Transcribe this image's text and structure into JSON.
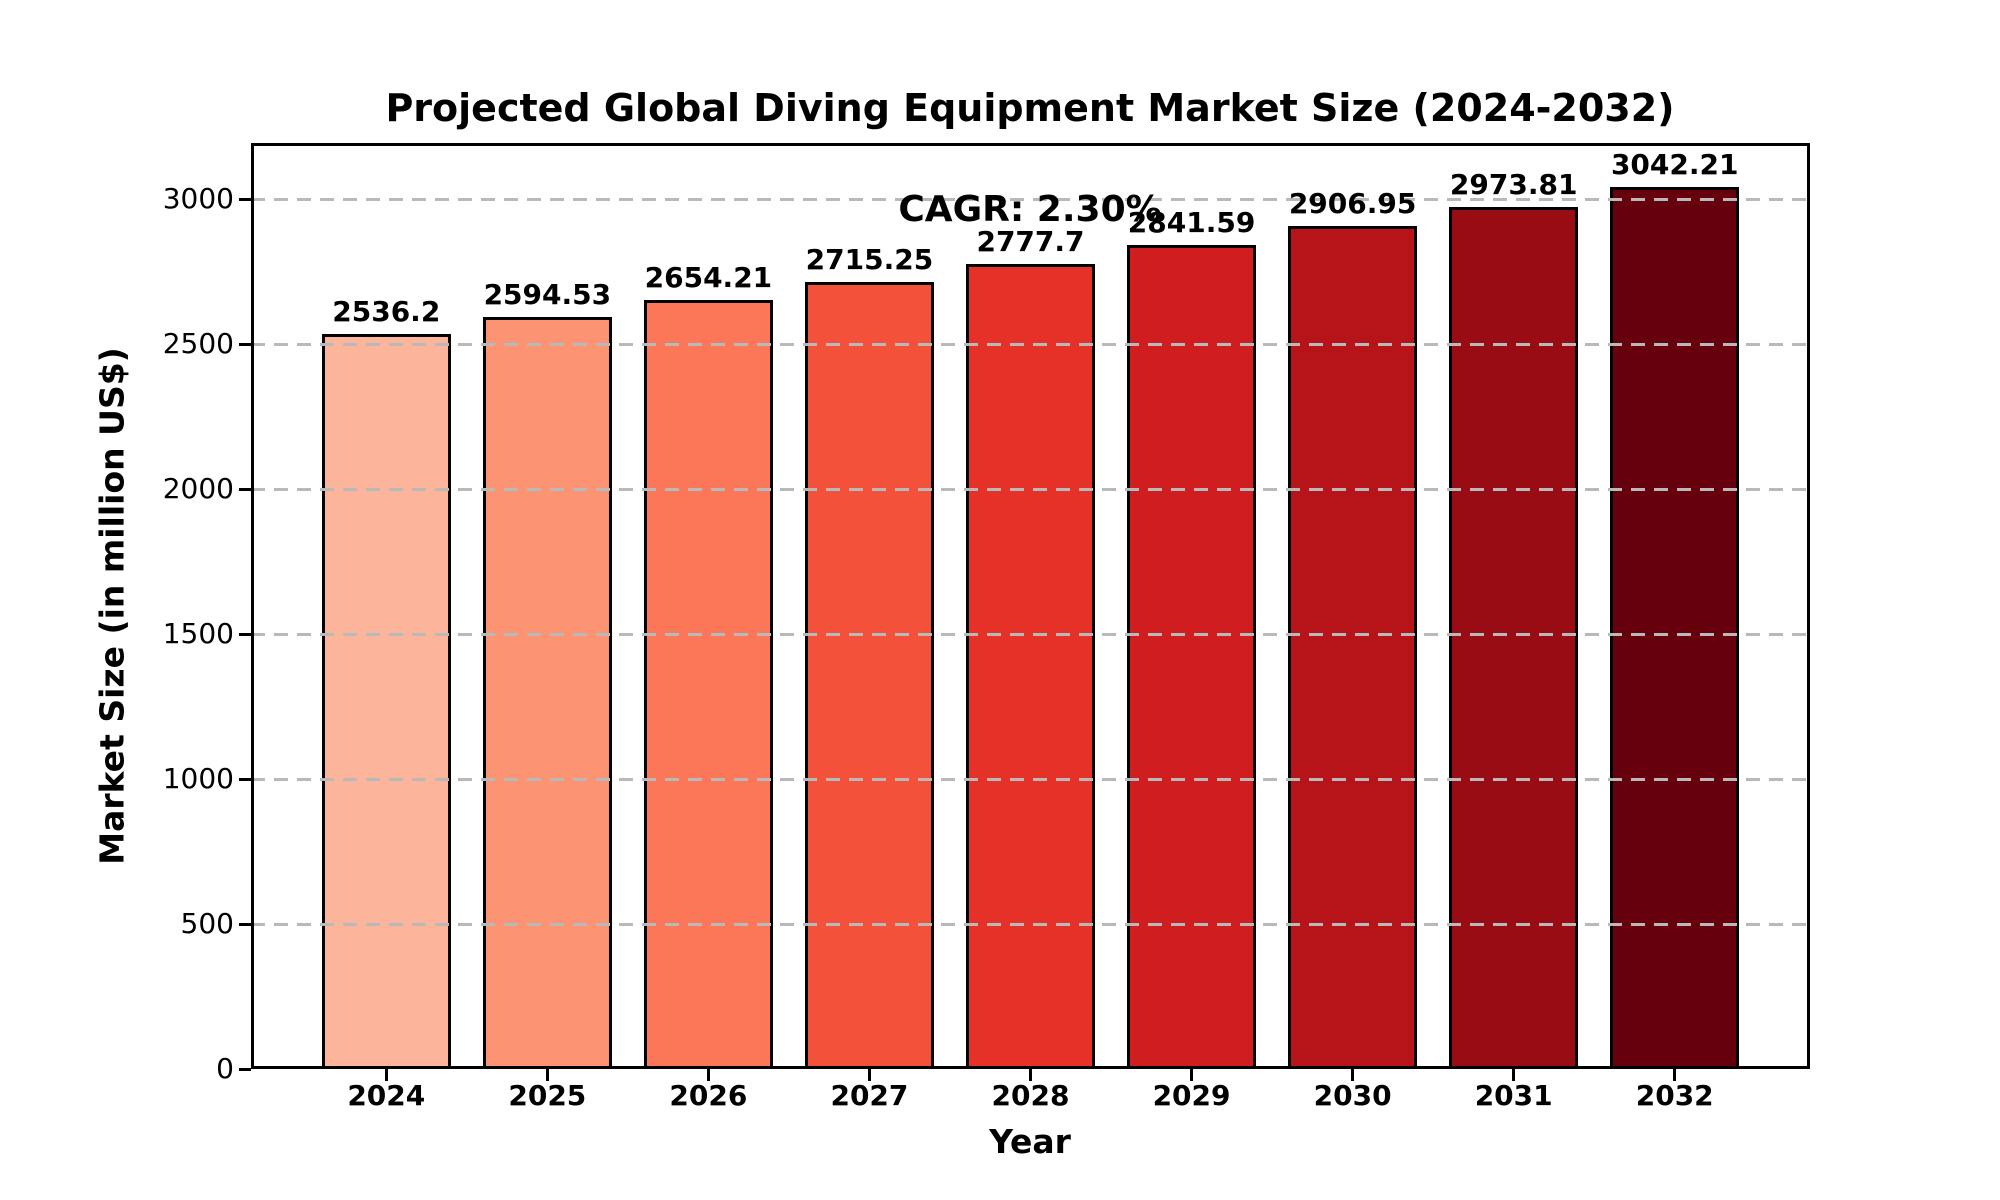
{
  "chart_data": {
    "type": "bar",
    "title": "Projected Global Diving Equipment Market Size (2024-2032)",
    "xlabel": "Year",
    "ylabel": "Market Size (in million US$)",
    "annotation": "CAGR: 2.30%",
    "categories": [
      "2024",
      "2025",
      "2026",
      "2027",
      "2028",
      "2029",
      "2030",
      "2031",
      "2032"
    ],
    "values": [
      2536.2,
      2594.53,
      2654.21,
      2715.25,
      2777.7,
      2841.59,
      2906.95,
      2973.81,
      3042.21
    ],
    "value_labels": [
      "2536.2",
      "2594.53",
      "2654.21",
      "2715.25",
      "2777.7",
      "2841.59",
      "2906.95",
      "2973.81",
      "3042.21"
    ],
    "bar_colors": [
      "#fcb49b",
      "#fc9373",
      "#fb7757",
      "#f4513b",
      "#e63129",
      "#d01d20",
      "#b71419",
      "#9a0c14",
      "#67000d"
    ],
    "bar_edge_color": "#000000",
    "yticks": [
      0,
      500,
      1000,
      1500,
      2000,
      2500,
      3000
    ],
    "ylim": [
      0,
      3194.3
    ],
    "grid": "horizontal-dashed",
    "grid_color": "#b9b9b9",
    "legend": "none"
  }
}
